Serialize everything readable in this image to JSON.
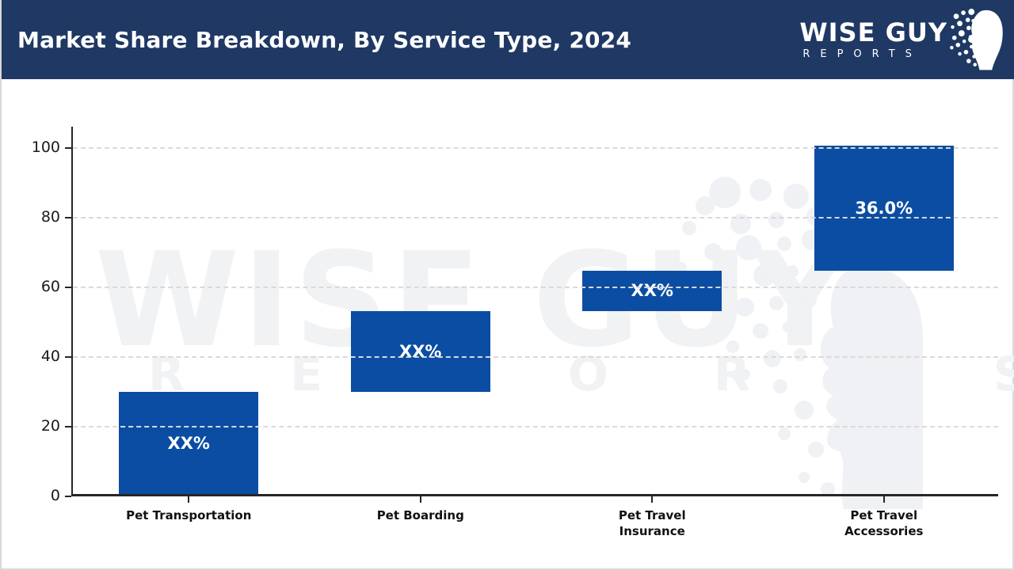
{
  "page": {
    "background": "#FFFFFF",
    "border_color": "#D9D9D9"
  },
  "header": {
    "title": "Market Share Breakdown, By Service Type, 2024",
    "background": "#1F3864",
    "logo": {
      "line1": "WISE GUY",
      "line2": "REPORTS",
      "face_icon": "dotted-face-profile"
    }
  },
  "watermark": {
    "line1": "WISE GUY",
    "line2": "R E P O R T S",
    "face_icon": "dotted-face-profile",
    "color": "#F1F2F4"
  },
  "colors": {
    "bar_fill": "#0B4DA2",
    "gridline": "#D9D9D9",
    "axis": "#262626",
    "bar_label_text": "#FFFFFF",
    "tick_label_text": "#1A1A1A"
  },
  "chart_data": {
    "type": "bar",
    "subtype": "waterfall",
    "title": "Market Share Breakdown, By Service Type, 2024",
    "xlabel": "",
    "ylabel": "",
    "categories": [
      "Pet Transportation",
      "Pet Boarding",
      "Pet Travel Insurance",
      "Pet Travel Accessories"
    ],
    "category_label_lines": [
      [
        "Pet Transportation"
      ],
      [
        "Pet Boarding"
      ],
      [
        "Pet Travel",
        "Insurance"
      ],
      [
        "Pet Travel",
        "Accessories"
      ]
    ],
    "segments": [
      {
        "category": "Pet Transportation",
        "start": 0,
        "end": 29.3,
        "value_label": "XX%"
      },
      {
        "category": "Pet Boarding",
        "start": 29.3,
        "end": 52.6,
        "value_label": "XX%"
      },
      {
        "category": "Pet Travel Insurance",
        "start": 52.6,
        "end": 64.0,
        "value_label": "XX%"
      },
      {
        "category": "Pet Travel Accessories",
        "start": 64.0,
        "end": 100.0,
        "value_label": "36.0%"
      }
    ],
    "yticks": [
      0,
      20,
      40,
      60,
      80,
      100
    ],
    "ylim": [
      0,
      106
    ],
    "grid": "horizontal dashed, drawn over bars",
    "legend": "none"
  }
}
